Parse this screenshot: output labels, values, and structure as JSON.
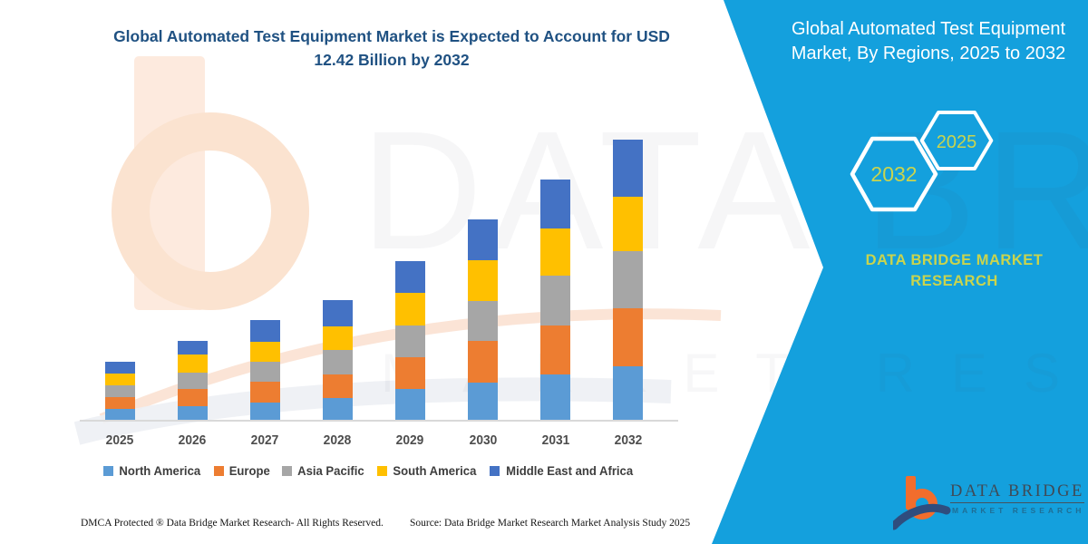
{
  "main_title": {
    "line1": "Global Automated Test Equipment Market is Expected to Account for USD",
    "line2": "12.42 Billion by 2032"
  },
  "right_panel": {
    "title_line1": "Global Automated Test Equipment",
    "title_line2": "Market, By Regions, 2025 to 2032",
    "hexagon_back_label": "2032",
    "hexagon_front_label": "2025",
    "brand_line1": "DATA BRIDGE MARKET",
    "brand_line2": "RESEARCH",
    "accent_color": "#14a0dd",
    "text_green": "#c9d44e"
  },
  "watermark": {
    "line1": "DATA BRIDGE",
    "line2": "MARKET RESEARCH"
  },
  "logo": {
    "name": "DATA BRIDGE",
    "tagline": "MARKET RESEARCH"
  },
  "footer": {
    "left": "DMCA Protected ® Data Bridge Market Research-  All Rights Reserved.",
    "right": "Source: Data Bridge Market Research  Market Analysis Study 2025"
  },
  "chart_data": {
    "type": "bar",
    "stacked": true,
    "unit": "USD Billion",
    "categories": [
      "2025",
      "2026",
      "2027",
      "2028",
      "2029",
      "2030",
      "2031",
      "2032"
    ],
    "series": [
      {
        "name": "North America",
        "color": "#5B9BD5",
        "values": [
          0.53,
          0.66,
          0.82,
          1.0,
          1.4,
          1.69,
          2.06,
          2.4
        ]
      },
      {
        "name": "Europe",
        "color": "#ED7D31",
        "values": [
          0.51,
          0.76,
          0.91,
          1.06,
          1.4,
          1.81,
          2.16,
          2.56
        ]
      },
      {
        "name": "Asia Pacific",
        "color": "#A6A6A6",
        "values": [
          0.52,
          0.71,
          0.87,
          1.07,
          1.42,
          1.79,
          2.2,
          2.53
        ]
      },
      {
        "name": "South America",
        "color": "#FFC000",
        "values": [
          0.51,
          0.8,
          0.86,
          1.03,
          1.44,
          1.77,
          2.07,
          2.41
        ]
      },
      {
        "name": "Middle East and Africa",
        "color": "#4472C4",
        "values": [
          0.51,
          0.6,
          0.96,
          1.14,
          1.38,
          1.8,
          2.17,
          2.52
        ]
      }
    ],
    "totals": [
      2.58,
      3.53,
      4.42,
      5.3,
      7.04,
      8.86,
      10.66,
      12.42
    ],
    "ylim": [
      0,
      13
    ],
    "grid": false,
    "legend_position": "bottom",
    "note": "Series values estimated from bar segment heights; 2032 total stated as USD 12.42 billion in title."
  }
}
